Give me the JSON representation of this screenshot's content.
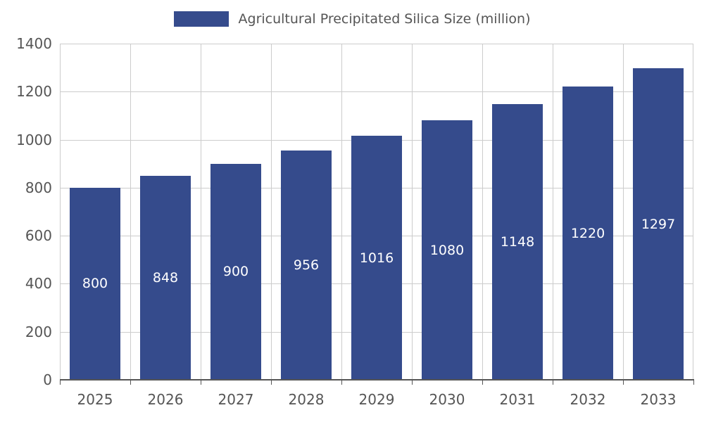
{
  "chart_data": {
    "type": "bar",
    "title": "",
    "legend": "Agricultural Precipitated Silica Size (million)",
    "categories": [
      "2025",
      "2026",
      "2027",
      "2028",
      "2029",
      "2030",
      "2031",
      "2032",
      "2033"
    ],
    "values": [
      800,
      848,
      900,
      956,
      1016,
      1080,
      1148,
      1220,
      1297
    ],
    "xlabel": "",
    "ylabel": "",
    "ylim": [
      0,
      1400
    ],
    "yticks": [
      0,
      200,
      400,
      600,
      800,
      1000,
      1200,
      1400
    ],
    "grid": true,
    "legend_position": "top",
    "bar_color": "#354b8c",
    "bar_value_label_color": "#ffffff"
  }
}
